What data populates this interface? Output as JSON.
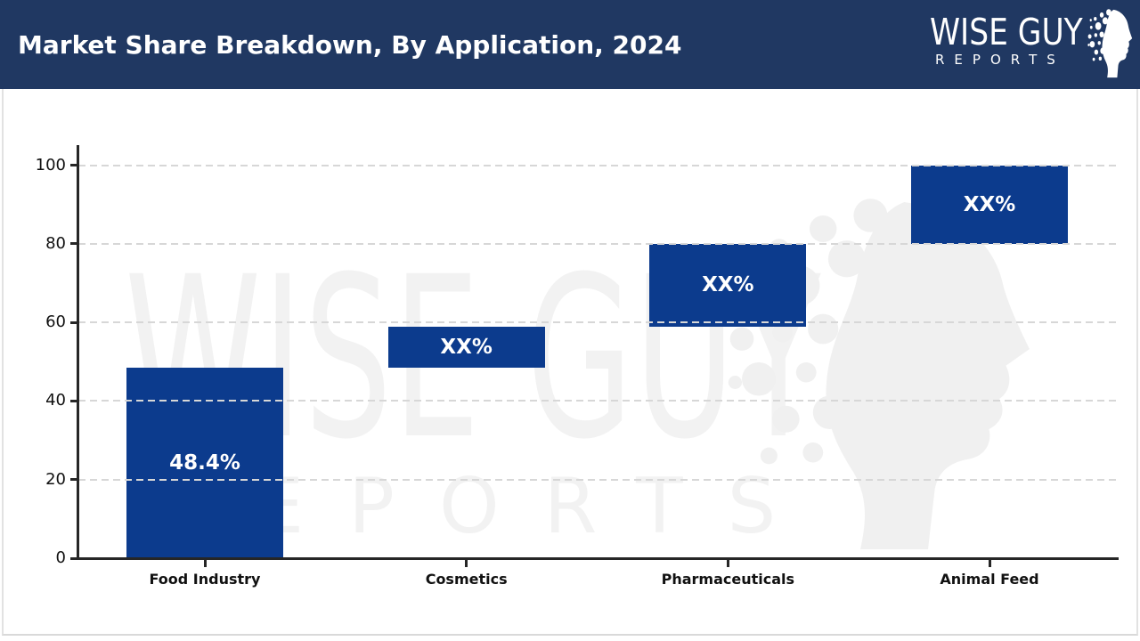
{
  "header": {
    "title": "Market Share Breakdown, By Application, 2024",
    "logo": {
      "wordmark": "WISE GUY",
      "wordmark_sub": "REPORTS"
    }
  },
  "watermark": {
    "line1": "WISE GUY",
    "line2": "REPORTS"
  },
  "chart_data": {
    "type": "bar",
    "subtype": "waterfall-floating-bars",
    "title": "Market Share Breakdown, By Application, 2024",
    "categories": [
      "Food Industry",
      "Cosmetics",
      "Pharmaceuticals",
      "Animal Feed"
    ],
    "segments": [
      {
        "category": "Food Industry",
        "start": 0,
        "end": 48.4,
        "size": 48.4,
        "label": "48.4%"
      },
      {
        "category": "Cosmetics",
        "start": 48.4,
        "end": 59,
        "size": 10.6,
        "label": "XX%"
      },
      {
        "category": "Pharmaceuticals",
        "start": 59,
        "end": 80,
        "size": 21,
        "label": "XX%"
      },
      {
        "category": "Animal Feed",
        "start": 80,
        "end": 100,
        "size": 20,
        "label": "XX%"
      }
    ],
    "yticks": [
      0,
      20,
      40,
      60,
      80,
      100
    ],
    "ylim": [
      0,
      100
    ],
    "xlabel": "",
    "ylabel": "",
    "legend": null,
    "grid": {
      "horizontal": true,
      "style": "dashed",
      "color": "#d7d7d7",
      "drawn_over_bars": true
    },
    "colors": {
      "bar": "#0c3b8d",
      "bar_label_text": "#ffffff",
      "axis": "#262626",
      "header_bg": "#203862",
      "tick_text": "#111111",
      "watermark": "#f2f2f2"
    }
  }
}
